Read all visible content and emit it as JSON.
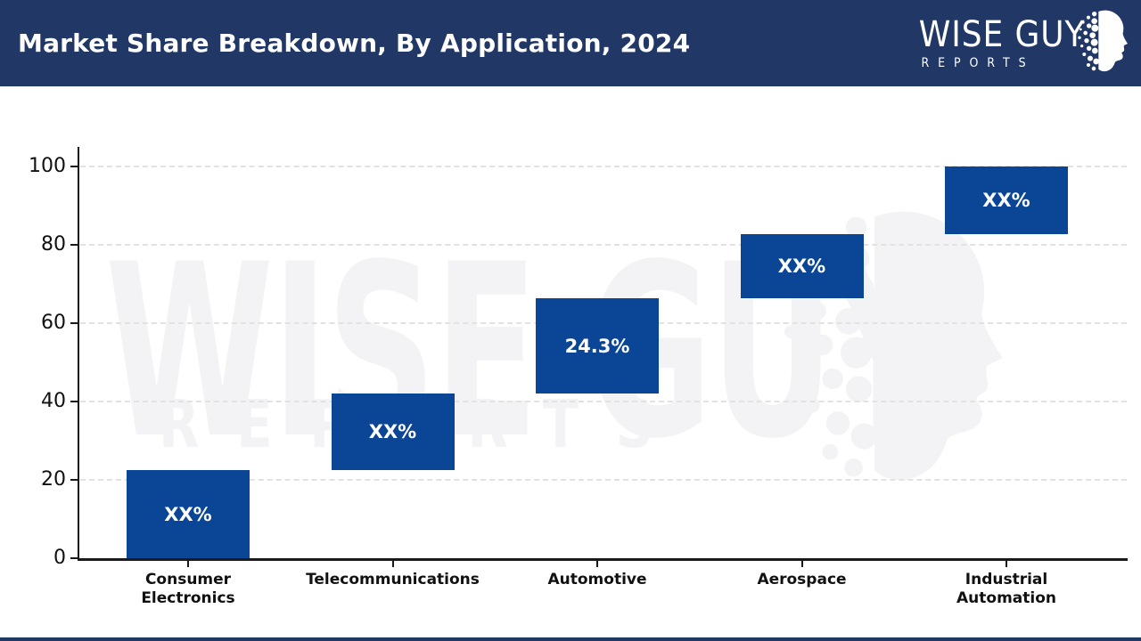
{
  "header": {
    "title": "Market Share Breakdown, By Application, 2024",
    "logo": {
      "line1": "WISE GUY",
      "line2": "REPORTS"
    }
  },
  "watermark": {
    "line1": "WISE GUY",
    "line2": "REPORTS"
  },
  "colors": {
    "header_bg": "#213766",
    "title_text": "#ffffff",
    "bar": "#0b4696",
    "bar_label": "#ffffff",
    "axis": "#1a1a1a",
    "grid": "#e2e2e2",
    "tick_label": "#111111",
    "watermark": "#f3f3f5"
  },
  "chart_data": {
    "type": "bar",
    "subtype": "floating-segment-waterfall",
    "title": "Market Share Breakdown, By Application, 2024",
    "categories": [
      "Consumer\nElectronics",
      "Telecommunications",
      "Automotive",
      "Aerospace",
      "Industrial\nAutomation"
    ],
    "segments": [
      {
        "category": "Consumer Electronics",
        "start": 0,
        "end": 22.4,
        "label": "XX%"
      },
      {
        "category": "Telecommunications",
        "start": 22.4,
        "end": 42.0,
        "label": "XX%"
      },
      {
        "category": "Automotive",
        "start": 42.0,
        "end": 66.3,
        "label": "24.3%"
      },
      {
        "category": "Aerospace",
        "start": 66.3,
        "end": 82.7,
        "label": "XX%"
      },
      {
        "category": "Industrial Automation",
        "start": 82.7,
        "end": 100.0,
        "label": "XX%"
      }
    ],
    "xlabel": "",
    "ylabel": "",
    "yticks": [
      0,
      20,
      40,
      60,
      80,
      100
    ],
    "ylim": [
      0,
      105
    ],
    "grid": "horizontal-dashed",
    "legend": "none"
  }
}
